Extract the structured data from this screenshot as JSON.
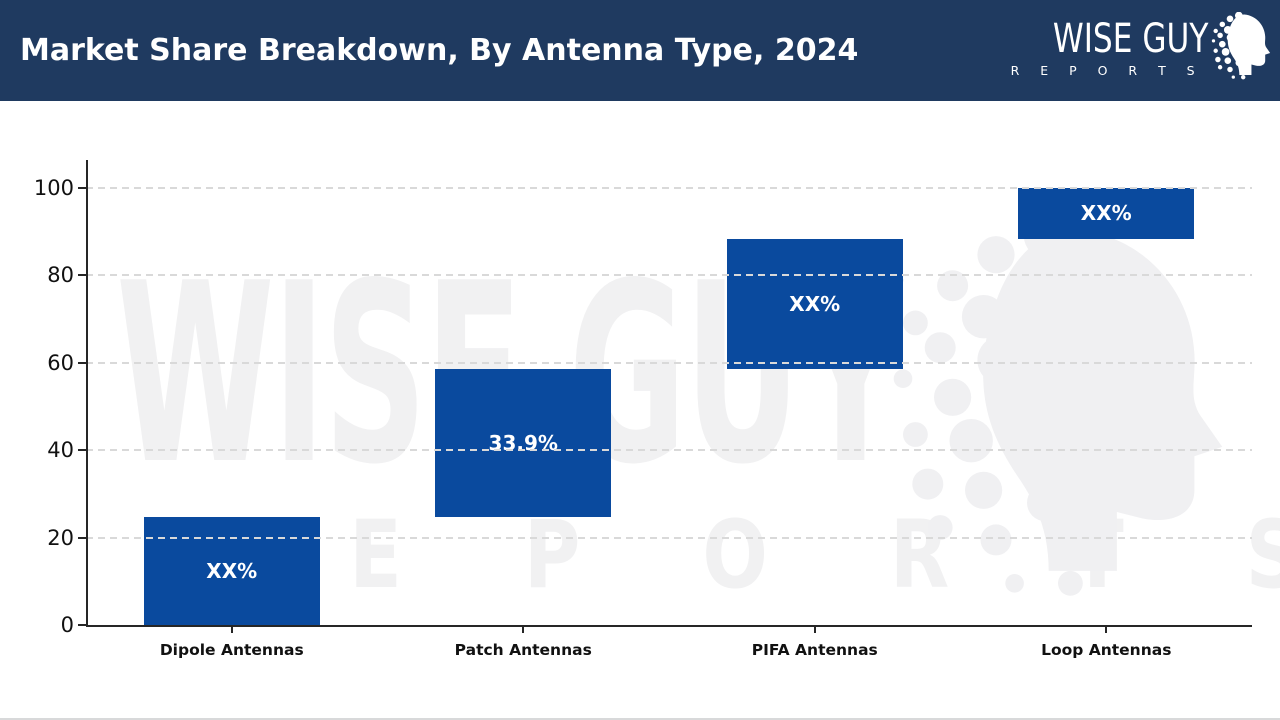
{
  "header": {
    "title": "Market Share Breakdown, By Antenna Type, 2024",
    "logo": {
      "line1": "WISE GUY",
      "line2": "R E P O R T S"
    }
  },
  "watermark": {
    "line1": "WISE GUY",
    "line2": "R E P O R T S"
  },
  "colors": {
    "header_bg": "#1f3a60",
    "bar": "#0a4a9e",
    "bar_label": "#ffffff",
    "grid": "#d9d9d9",
    "axis": "#262626",
    "watermark": "#f1f1f2"
  },
  "chart_data": {
    "type": "bar",
    "subtype": "waterfall",
    "title": "Market Share Breakdown, By Antenna Type, 2024",
    "categories": [
      "Dipole Antennas",
      "Patch Antennas",
      "PIFA Antennas",
      "Loop Antennas"
    ],
    "segments": [
      {
        "category": "Dipole Antennas",
        "start": 0,
        "end": 24.7,
        "value_label": "XX%",
        "estimated_value": 24.7
      },
      {
        "category": "Patch Antennas",
        "start": 24.7,
        "end": 58.6,
        "value_label": "33.9%",
        "estimated_value": 33.9
      },
      {
        "category": "PIFA Antennas",
        "start": 58.6,
        "end": 88.2,
        "value_label": "XX%",
        "estimated_value": 29.6
      },
      {
        "category": "Loop Antennas",
        "start": 88.2,
        "end": 100,
        "value_label": "XX%",
        "estimated_value": 11.8
      }
    ],
    "yticks": [
      0,
      20,
      40,
      60,
      80,
      100
    ],
    "ylim": [
      0,
      106
    ],
    "xlabel": "",
    "ylabel": "",
    "grid": "horizontal-dashed",
    "legend": "none"
  }
}
